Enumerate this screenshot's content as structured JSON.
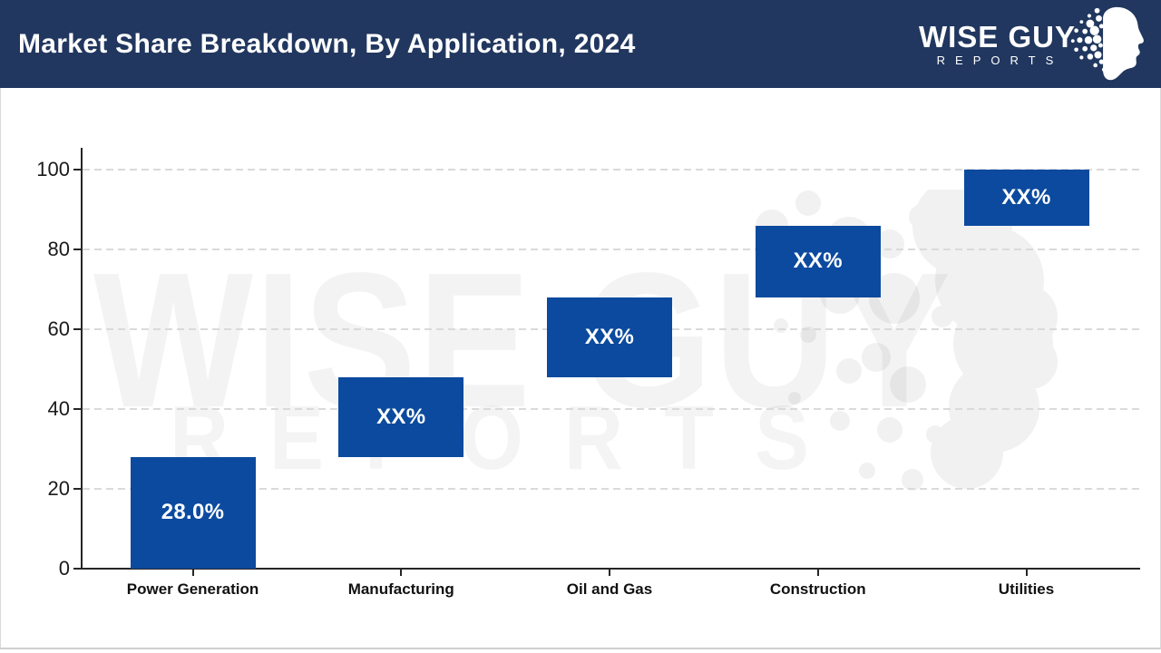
{
  "header": {
    "title": "Market Share Breakdown, By Application, 2024",
    "logo": {
      "line1": "WISE GUY",
      "line2": "REPORTS",
      "head_icon": "dotted-head-profile"
    }
  },
  "watermark": {
    "line1": "WISE GUY",
    "line2": "REPORTS"
  },
  "colors": {
    "header_bg": "#21375f",
    "bar": "#0b4a9e",
    "axis": "#262626",
    "grid_dash": "#dadada",
    "bar_label_text": "#ffffff",
    "title_text": "#ffffff"
  },
  "chart_data": {
    "type": "bar",
    "subtype": "floating-waterfall",
    "title": "Market Share Breakdown, By Application, 2024",
    "categories": [
      "Power Generation",
      "Manufacturing",
      "Oil and Gas",
      "Construction",
      "Utilities"
    ],
    "bars": [
      {
        "category": "Power Generation",
        "start": 0,
        "end": 28,
        "increment": 28,
        "label": "28.0%"
      },
      {
        "category": "Manufacturing",
        "start": 28,
        "end": 48,
        "increment": 20,
        "label": "XX%"
      },
      {
        "category": "Oil and Gas",
        "start": 48,
        "end": 68,
        "increment": 20,
        "label": "XX%"
      },
      {
        "category": "Construction",
        "start": 68,
        "end": 86,
        "increment": 18,
        "label": "XX%"
      },
      {
        "category": "Utilities",
        "start": 86,
        "end": 100,
        "increment": 14,
        "label": "XX%"
      }
    ],
    "xlabel": "",
    "ylabel": "",
    "yticks": [
      0,
      20,
      40,
      60,
      80,
      100
    ],
    "ylim": [
      0,
      105
    ],
    "grid": "horizontal-dashed",
    "legend": "none",
    "masked_value_label": "XX%"
  }
}
